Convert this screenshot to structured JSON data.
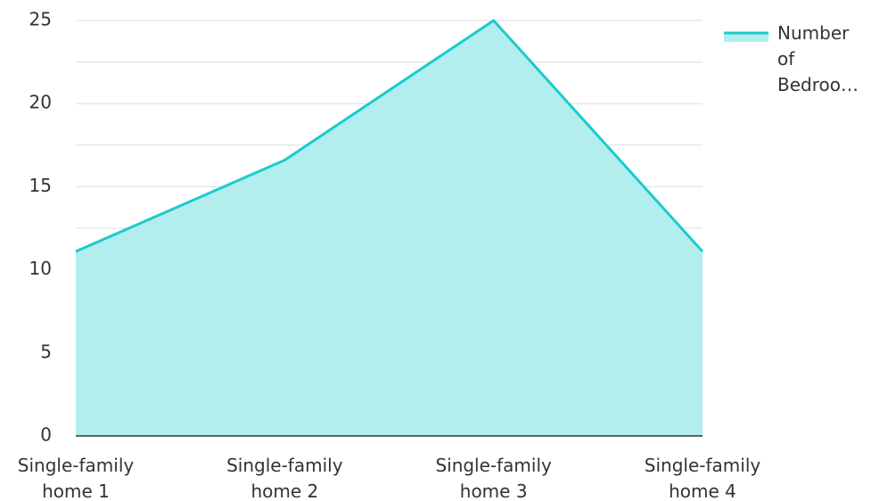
{
  "chart_data": {
    "type": "area",
    "title": "",
    "xlabel": "",
    "ylabel": "",
    "categories": [
      [
        "Single-family",
        "home 1"
      ],
      [
        "Single-family",
        "home 2"
      ],
      [
        "Single-family",
        "home 3"
      ],
      [
        "Single-family",
        "home 4"
      ]
    ],
    "series": [
      {
        "name": "Number of Bedroo…",
        "values": [
          11.1,
          16.6,
          25,
          11.1
        ],
        "line_color": "#1CCBCB",
        "fill_color": "#B2EEEE"
      }
    ],
    "ylim": [
      0,
      25
    ],
    "y_ticks": [
      "0",
      "5",
      "10",
      "15",
      "20",
      "25"
    ],
    "grid": true,
    "legend": {
      "position": "top-right",
      "lines": [
        "Number",
        "of",
        "Bedroo…"
      ]
    }
  }
}
